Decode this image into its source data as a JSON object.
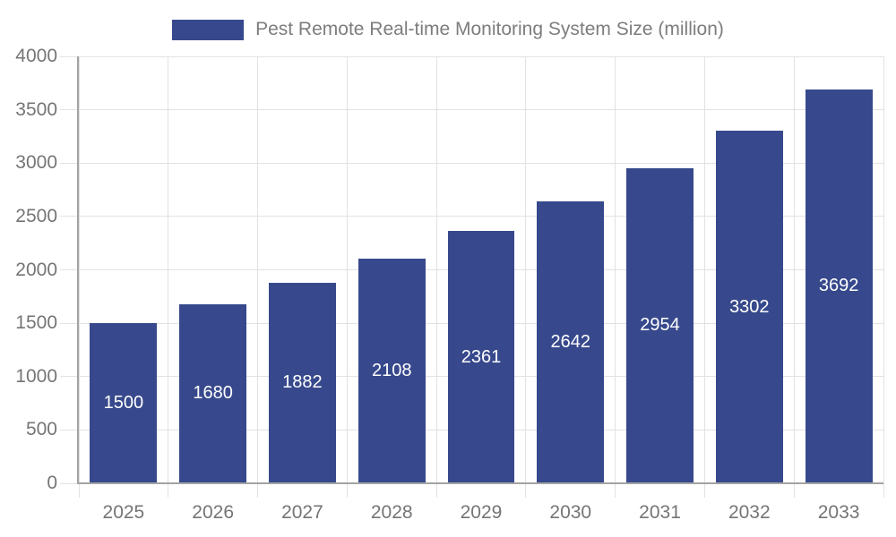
{
  "legend": {
    "label": "Pest Remote Real-time Monitoring System Size (million)"
  },
  "chart_data": {
    "type": "bar",
    "title": "Pest Remote Real-time Monitoring System Size (million)",
    "categories": [
      "2025",
      "2026",
      "2027",
      "2028",
      "2029",
      "2030",
      "2031",
      "2032",
      "2033"
    ],
    "values": [
      1500,
      1680,
      1882,
      2108,
      2361,
      2642,
      2954,
      3302,
      3692
    ],
    "xlabel": "",
    "ylabel": "",
    "ylim": [
      0,
      4000
    ],
    "yticks": [
      0,
      500,
      1000,
      1500,
      2000,
      2500,
      3000,
      3500,
      4000
    ],
    "grid": true,
    "legend_position": "top-center",
    "bar_label_position": "inside-center"
  },
  "colors": {
    "bar": "#37498C",
    "grid": "#e2e2e2",
    "axis": "#a3a3a3",
    "tick_label": "#757575",
    "legend_text": "#7d7d7d",
    "bar_label": "#ffffff",
    "background": "#ffffff"
  }
}
